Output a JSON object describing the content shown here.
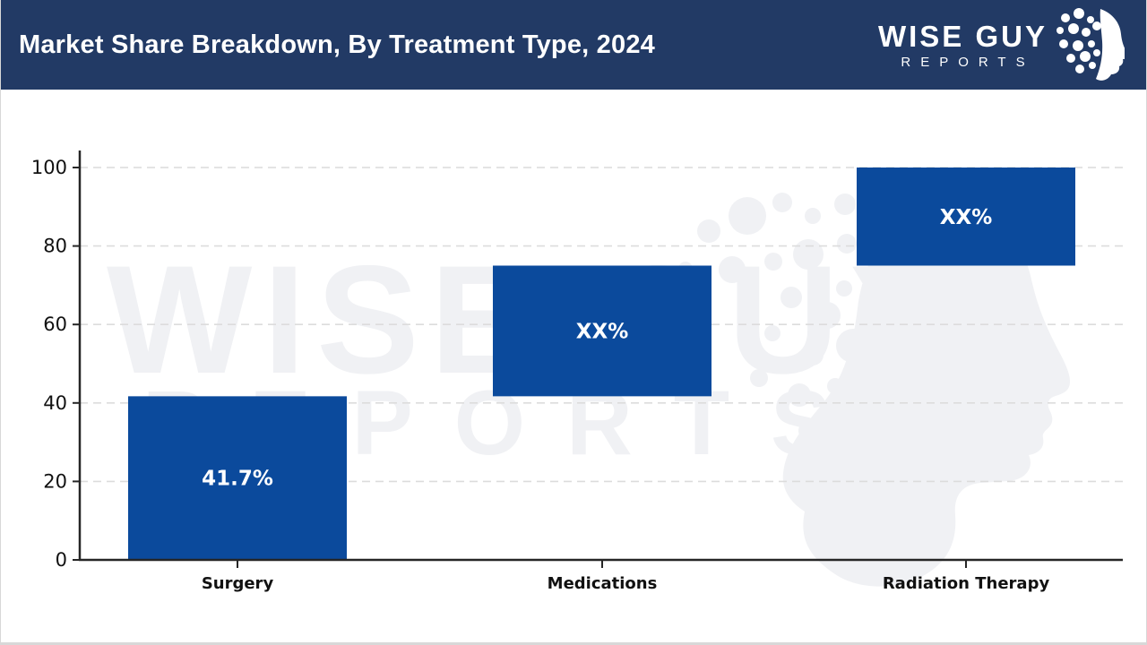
{
  "header": {
    "title": "Market Share Breakdown, By Treatment Type, 2024",
    "bg_color": "#223A65",
    "brand": {
      "line1": "WISE GUY",
      "line2": "REPORTS"
    }
  },
  "watermark": {
    "line1": "WISE GUY",
    "line2": "REPORTS"
  },
  "chart_data": {
    "type": "bar",
    "subtype": "floating-waterfall-bars",
    "title": "Market Share Breakdown, By Treatment Type, 2024",
    "categories": [
      "Surgery",
      "Medications",
      "Radiation Therapy"
    ],
    "series": [
      {
        "name": "Market Share",
        "segments": [
          {
            "category": "Surgery",
            "from": 0,
            "to": 41.7,
            "label": "41.7%"
          },
          {
            "category": "Medications",
            "from": 41.7,
            "to": 75,
            "label": "XX%"
          },
          {
            "category": "Radiation Therapy",
            "from": 75,
            "to": 100,
            "label": "XX%"
          }
        ]
      }
    ],
    "xlabel": "",
    "ylabel": "",
    "ylim": [
      0,
      100
    ],
    "yticks": [
      0,
      20,
      40,
      60,
      80,
      100
    ],
    "grid": "horizontal-dashed",
    "legend": "none",
    "colors": {
      "bar": "#0b4a9c",
      "bar_label": "#ffffff",
      "axis": "#262626",
      "grid": "#dcdcdc",
      "tick_text": "#111111"
    }
  }
}
